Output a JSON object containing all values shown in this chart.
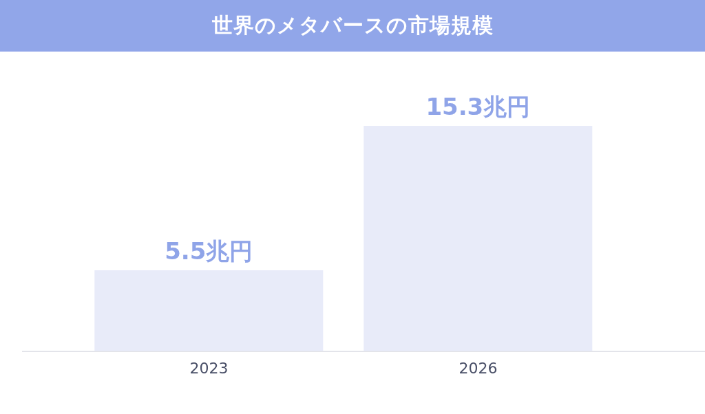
{
  "chart_data": {
    "type": "bar",
    "title": "世界のメタバースの市場規模",
    "categories": [
      "2023",
      "2026"
    ],
    "values": [
      5.5,
      15.3
    ],
    "value_labels": [
      "5.5兆円",
      "15.3兆円"
    ],
    "color": "#e8ebf9"
  }
}
